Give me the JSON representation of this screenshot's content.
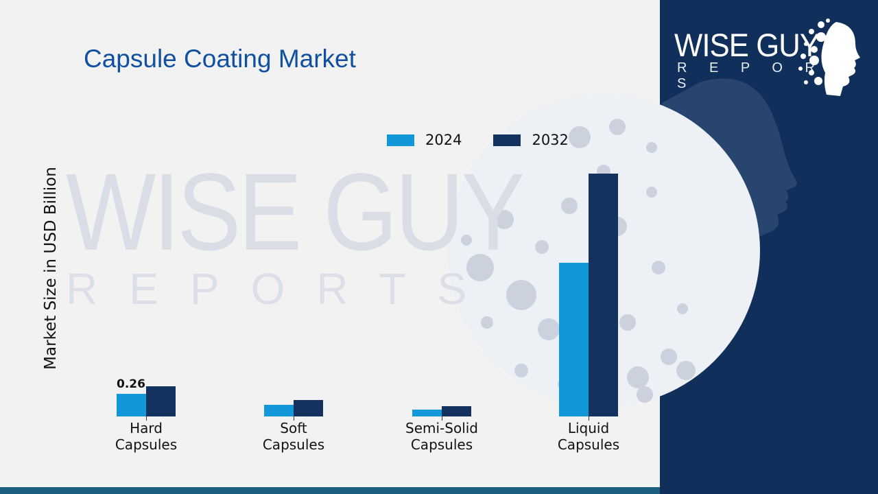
{
  "title": "Capsule Coating Market",
  "chart_data": {
    "type": "bar",
    "title": "Capsule Coating Market",
    "xlabel": "",
    "ylabel": "Market Size in USD Billion",
    "categories": [
      "Hard Capsules",
      "Soft Capsules",
      "Semi-Solid Capsules",
      "Liquid Capsules"
    ],
    "category_lines": [
      [
        "Hard",
        "Capsules"
      ],
      [
        "Soft",
        "Capsules"
      ],
      [
        "Semi-Solid",
        "Capsules"
      ],
      [
        "Liquid",
        "Capsules"
      ]
    ],
    "series": [
      {
        "name": "2024",
        "color": "#1297d8",
        "values": [
          0.26,
          0.13,
          0.08,
          1.76
        ]
      },
      {
        "name": "2032",
        "color": "#143260",
        "values": [
          0.35,
          0.19,
          0.12,
          2.79
        ]
      }
    ],
    "annotations": [
      {
        "category_index": 0,
        "series_index": 0,
        "text": "0.26"
      }
    ],
    "ylim": [
      0,
      3
    ],
    "grid": false,
    "legend_position": "top-center",
    "axis_lines_visible": false
  },
  "legend": {
    "items": [
      {
        "label": "2024",
        "color": "#1297d8"
      },
      {
        "label": "2032",
        "color": "#143260"
      }
    ]
  },
  "branding": {
    "logo_line1": "WISE GUY",
    "logo_line2": "R E P O R T S",
    "watermark_line1": "WISE GUY",
    "watermark_line2": "REPORTS"
  },
  "colors": {
    "background": "#f2f2f3",
    "panel_navy": "#112f5b",
    "panel_face_navy": "#27456f",
    "title_blue": "#1150a0",
    "series_2024_blue": "#1297d8",
    "series_2032_navy": "#143260",
    "teal_strip": "#1b607e",
    "watermark_gray": "#d9dde5",
    "circle_fill": "#edf0f5",
    "circle_dots": "#cbd2de"
  }
}
